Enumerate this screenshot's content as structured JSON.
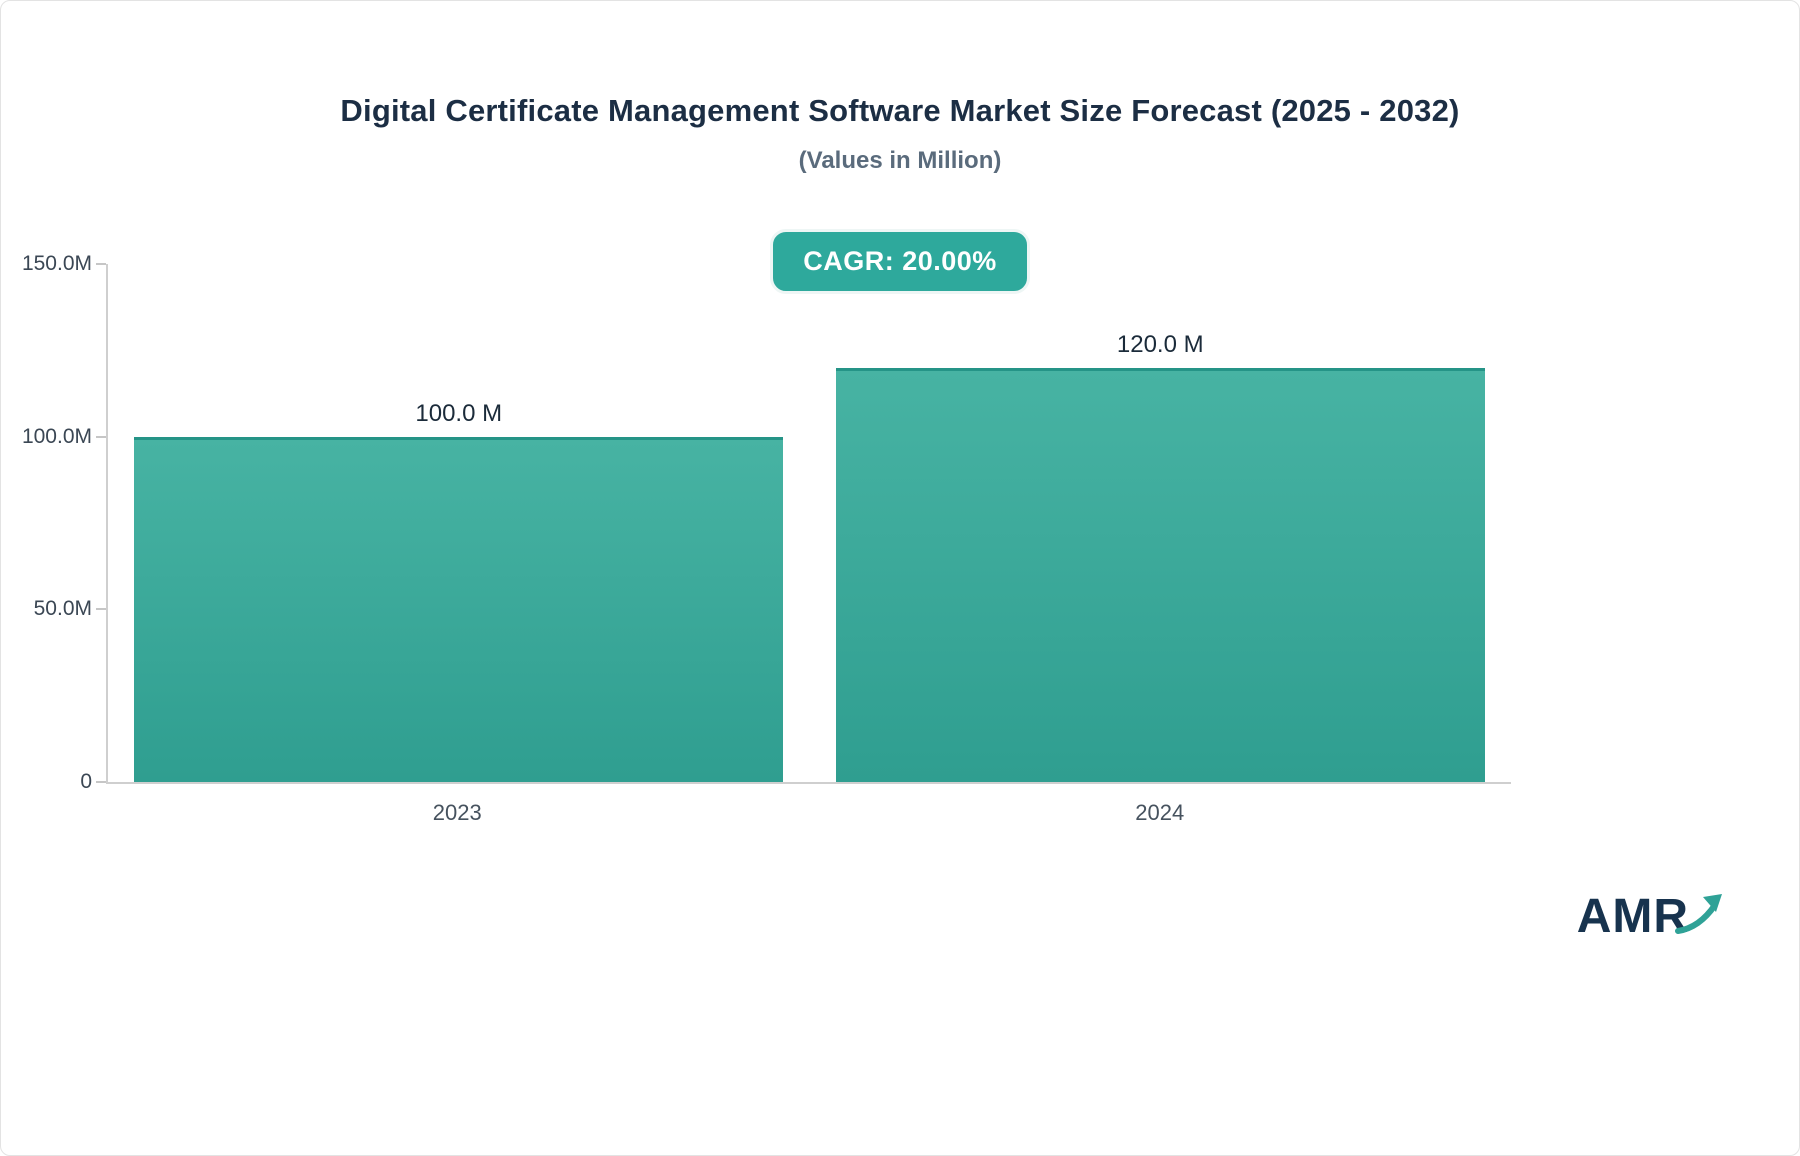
{
  "header": {
    "title": "Digital Certificate Management Software Market Size Forecast (2025 - 2032)",
    "subtitle": "(Values in Million)",
    "cagr_badge": "CAGR: 20.00%"
  },
  "chart_data": {
    "type": "bar",
    "title": "Digital Certificate Management Software Market Size Forecast (2025 - 2032)",
    "subtitle": "(Values in Million)",
    "categories": [
      "2023",
      "2024"
    ],
    "values": [
      100.0,
      120.0
    ],
    "value_labels": [
      "100.0 M",
      "120.0 M"
    ],
    "xlabel": "",
    "ylabel": "",
    "ylim": [
      0,
      150
    ],
    "y_ticks": [
      {
        "label": "150.0M",
        "value": 150
      },
      {
        "label": "100.0M",
        "value": 100
      },
      {
        "label": "50.0M",
        "value": 50
      },
      {
        "label": "0",
        "value": 0
      }
    ],
    "grid": false,
    "legend": "none",
    "bar_color_top": "#47b3a3",
    "bar_color_bottom": "#2f9e90",
    "accent_color": "#2ea99c"
  },
  "branding": {
    "logo_text": "AMR"
  }
}
